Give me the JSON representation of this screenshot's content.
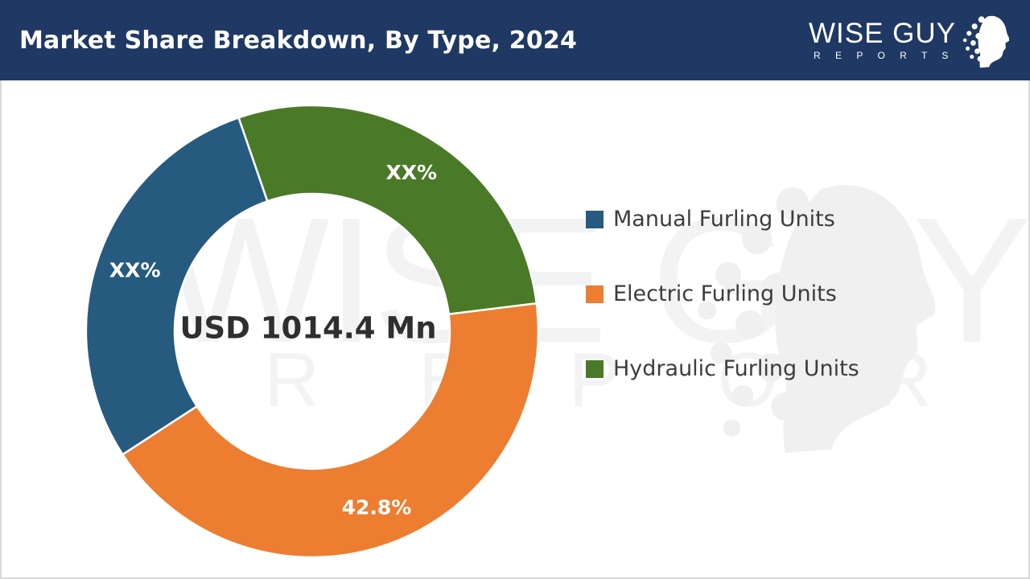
{
  "header": {
    "title": "Market Share Breakdown, By Type, 2024",
    "logo": {
      "line1": "WISE GUY",
      "line2": "R E P O R T S"
    }
  },
  "watermark": {
    "line1": "WISE GUY",
    "line2": "R E P O R T S"
  },
  "chart_data": {
    "type": "pie",
    "variant": "donut",
    "title": "Market Share Breakdown, By Type, 2024",
    "center_label": "USD 1014.4 Mn",
    "unit": "USD Mn",
    "total_value": 1014.4,
    "start_angle_deg_cw_from_north": -19,
    "legend_position": "right",
    "slices": [
      {
        "name": "Hydraulic Furling Units",
        "label": "XX%",
        "value_pct": 28.3,
        "color": "#4a7a28",
        "masked": true
      },
      {
        "name": "Electric Furling Units",
        "label": "42.8%",
        "value_pct": 42.8,
        "color": "#ed7d31",
        "masked": false
      },
      {
        "name": "Manual Furling Units",
        "label": "XX%",
        "value_pct": 28.9,
        "color": "#275a7f",
        "masked": true
      }
    ]
  },
  "legend": {
    "items": [
      {
        "label": "Manual Furling Units",
        "color": "#275a7f"
      },
      {
        "label": "Electric Furling Units",
        "color": "#ed7d31"
      },
      {
        "label": "Hydraulic Furling Units",
        "color": "#4a7a28"
      }
    ]
  },
  "colors": {
    "header_bg": "#1f3864",
    "slice_label": "#ffffff",
    "center_text": "#2f2f2f",
    "legend_text": "#3d3d3d",
    "watermark": "#f3f3f3",
    "border": "#d9d9d9"
  }
}
